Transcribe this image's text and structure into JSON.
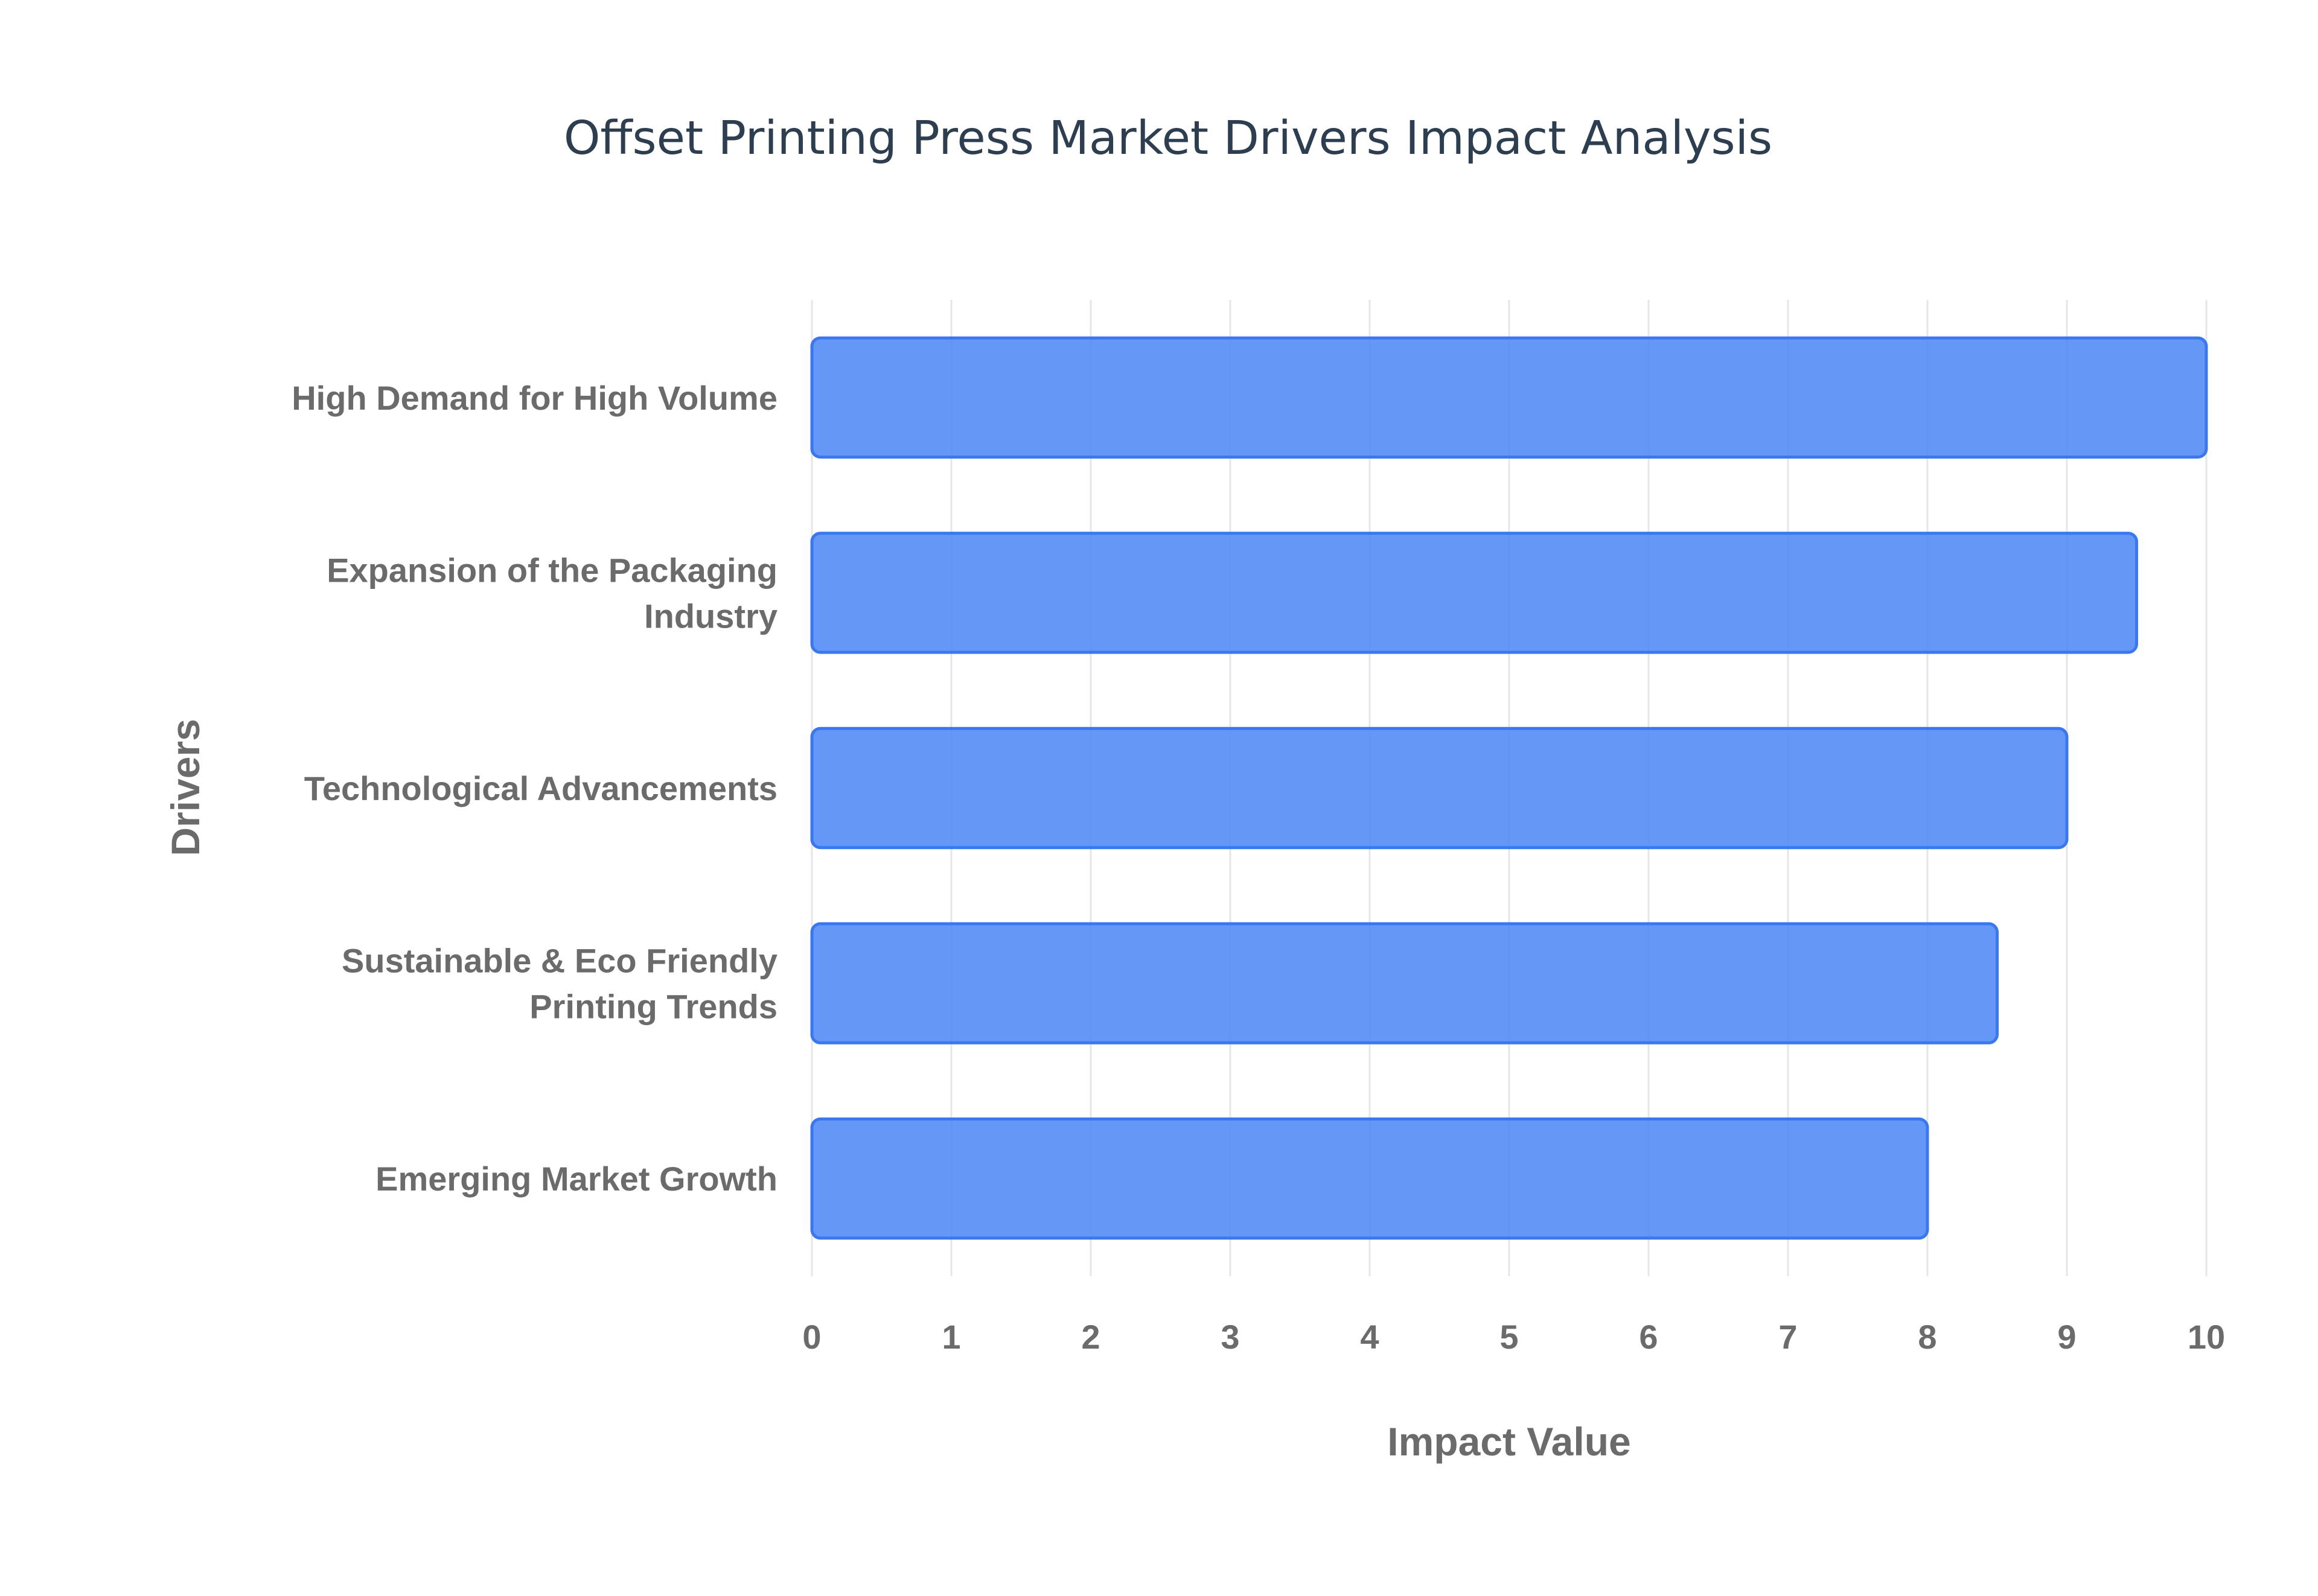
{
  "chart_data": {
    "type": "bar",
    "orientation": "horizontal",
    "title": "Offset Printing Press Market Drivers Impact Analysis",
    "xlabel": "Impact Value",
    "ylabel": "Drivers",
    "xlim": [
      0,
      10
    ],
    "xticks": [
      "0",
      "1",
      "2",
      "3",
      "4",
      "5",
      "6",
      "7",
      "8",
      "9",
      "10"
    ],
    "grid": true,
    "legend": "none",
    "bar_color": "#4a86f5",
    "categories": [
      [
        "High Demand for High Volume"
      ],
      [
        "Expansion of the Packaging",
        "Industry"
      ],
      [
        "Technological Advancements"
      ],
      [
        "Sustainable & Eco Friendly",
        "Printing Trends"
      ],
      [
        "Emerging Market Growth"
      ]
    ],
    "values": [
      10,
      9.5,
      9,
      8.5,
      8
    ]
  }
}
